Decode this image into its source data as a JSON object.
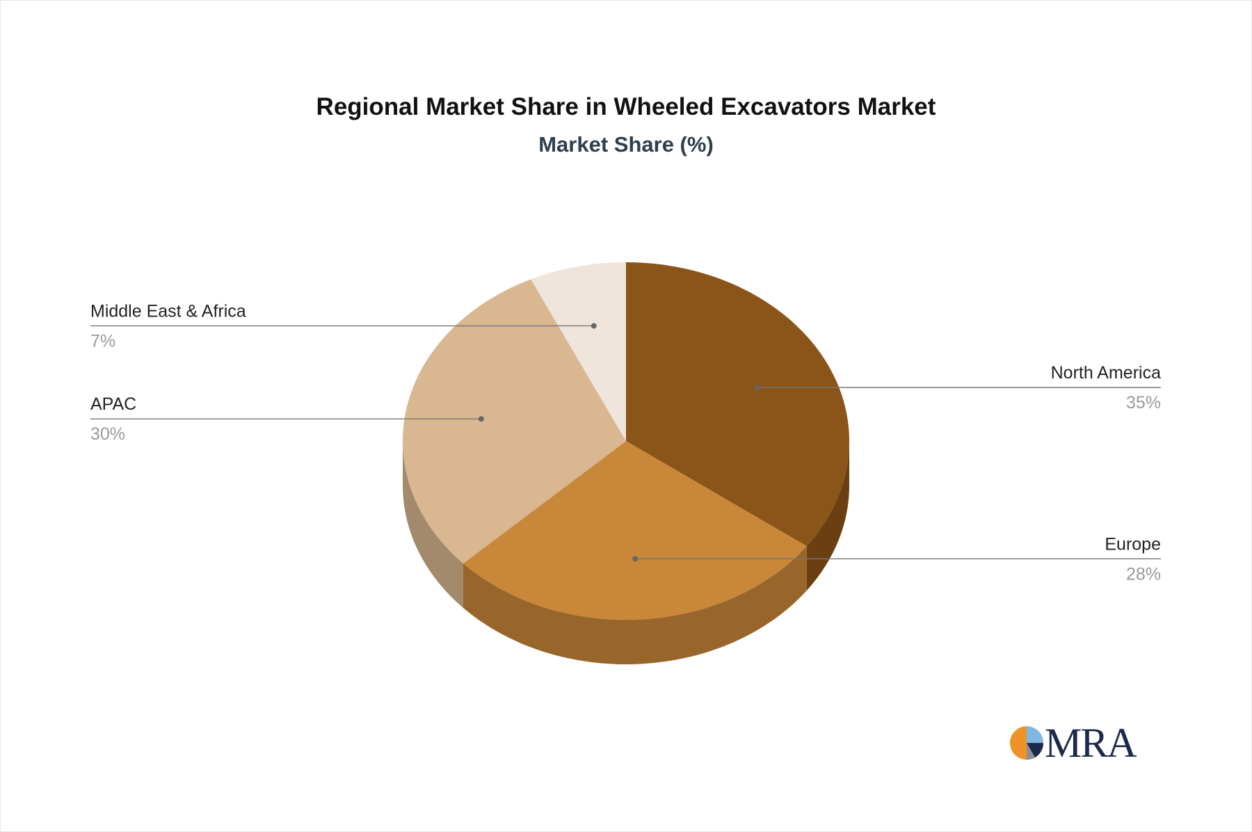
{
  "title": "Regional Market Share in Wheeled Excavators Market",
  "subtitle": "Market Share (%)",
  "logo": {
    "text": "MRA",
    "icon": "pie-logo-icon"
  },
  "chart_data": {
    "type": "pie",
    "style": "3d",
    "title": "Regional Market Share in Wheeled Excavators Market",
    "subtitle": "Market Share (%)",
    "unit": "%",
    "slices": [
      {
        "label": "North America",
        "value": 35,
        "display": "35%",
        "color": "#8b5419",
        "side_color": "#6b3f12"
      },
      {
        "label": "Europe",
        "value": 28,
        "display": "28%",
        "color": "#c98739",
        "side_color": "#98652a"
      },
      {
        "label": "APAC",
        "value": 30,
        "display": "30%",
        "color": "#d8b791",
        "side_color": "#a38a6c"
      },
      {
        "label": "Middle East & Africa",
        "value": 7,
        "display": "7%",
        "color": "#efe5dc",
        "side_color": "#bcb3aa"
      }
    ]
  }
}
